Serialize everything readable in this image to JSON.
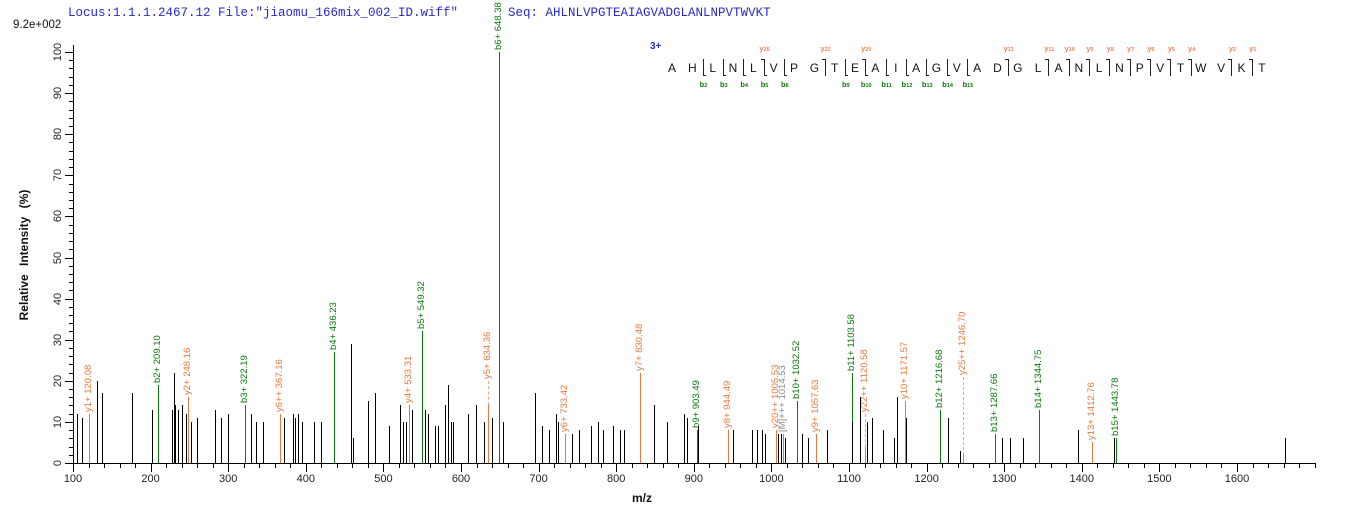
{
  "header": {
    "locus_file": "Locus:1.1.1.2467.12 File:\"jiaomu_166mix_002_ID.wiff\"",
    "seq_label": "Seq:",
    "seq_value": "AHLNLVPGTEAIAGVADGLANLNPVTWVKT"
  },
  "sequence_annotation": {
    "precursor_charge": "3+",
    "residues": "AHLNLVPGTEAIAGVADGLANLNPVTWVKT",
    "cleavages": [
      {
        "after": 2,
        "b": "b2"
      },
      {
        "after": 3,
        "b": "b3"
      },
      {
        "after": 4,
        "b": "b4"
      },
      {
        "after": 5,
        "b": "b5",
        "y": "y25"
      },
      {
        "after": 6,
        "b": "b6"
      },
      {
        "after": 8,
        "y": "y22"
      },
      {
        "after": 9,
        "b": "b9"
      },
      {
        "after": 10,
        "b": "b10",
        "y": "y20"
      },
      {
        "after": 11,
        "b": "b11"
      },
      {
        "after": 12,
        "b": "b12"
      },
      {
        "after": 13,
        "b": "b13"
      },
      {
        "after": 14,
        "b": "b14"
      },
      {
        "after": 15,
        "b": "b15"
      },
      {
        "after": 17,
        "y": "y13"
      },
      {
        "after": 19,
        "y": "y11"
      },
      {
        "after": 20,
        "y": "y10"
      },
      {
        "after": 21,
        "y": "y9"
      },
      {
        "after": 22,
        "y": "y8"
      },
      {
        "after": 23,
        "y": "y7"
      },
      {
        "after": 24,
        "y": "y6"
      },
      {
        "after": 25,
        "y": "y5"
      },
      {
        "after": 26,
        "y": "y4"
      },
      {
        "after": 28,
        "y": "y2"
      },
      {
        "after": 29,
        "y": "y1"
      }
    ]
  },
  "chart_data": {
    "type": "bar",
    "subtype": "tandem-ms-stick-spectrum",
    "title": "",
    "xlabel": "m/z",
    "ylabel": "Relative Intensity (%)",
    "max_intensity_label": "9.2e+002",
    "x_range": [
      100,
      1700
    ],
    "y_range": [
      0,
      100
    ],
    "x_major_tick_step": 100,
    "x_minor_tick_step": 20,
    "x_last_labeled_tick": 1600,
    "y_major_tick_step": 10,
    "y_minor_tick_step": 2,
    "grid": "off",
    "legend": "none",
    "colors": {
      "b_ions": "#0a7a0a",
      "y_ions": "#e87a3c",
      "precursor": "#8c8c8c",
      "unassigned": "#000000"
    },
    "series": [
      {
        "name": "b-ions",
        "color": "#0a7a0a",
        "peaks": [
          {
            "mz": 209.1,
            "label": "b2+ 209.10",
            "pct": 19
          },
          {
            "mz": 322.19,
            "label": "b3+ 322.19",
            "pct": 14
          },
          {
            "mz": 436.23,
            "label": "b4+ 436.23",
            "pct": 27
          },
          {
            "mz": 549.32,
            "label": "b5+ 549.32",
            "pct": 32
          },
          {
            "mz": 648.38,
            "label": "b6+ 648.38",
            "pct": 100
          },
          {
            "mz": 903.49,
            "label": "b9+ 903.49",
            "pct": 8
          },
          {
            "mz": 1032.52,
            "label": "b10+ 1032.52",
            "pct": 15
          },
          {
            "mz": 1103.58,
            "label": "b11+ 1103.58",
            "pct": 22
          },
          {
            "mz": 1216.68,
            "label": "b12+ 1216.68",
            "pct": 13
          },
          {
            "mz": 1287.66,
            "label": "b13+ 1287.66",
            "pct": 7
          },
          {
            "mz": 1344.75,
            "label": "b14+ 1344.75",
            "pct": 13
          },
          {
            "mz": 1443.78,
            "label": "b15+ 1443.78",
            "pct": 6
          }
        ]
      },
      {
        "name": "y-ions",
        "color": "#e87a3c",
        "peaks": [
          {
            "mz": 120.08,
            "label": "y1+ 120.08",
            "pct": 12
          },
          {
            "mz": 248.16,
            "label": "y2+ 248.16",
            "pct": 16
          },
          {
            "mz": 367.16,
            "label": "y6++ 367.16",
            "pct": 12
          },
          {
            "mz": 533.31,
            "label": "y4+ 533.31",
            "pct": 14
          },
          {
            "mz": 634.36,
            "label": "y5+ 634.36",
            "pct": 14,
            "dash_to": 20
          },
          {
            "mz": 733.42,
            "label": "y6+ 733.42",
            "pct": 7
          },
          {
            "mz": 830.48,
            "label": "y7+ 830.48",
            "pct": 22
          },
          {
            "mz": 944.49,
            "label": "y8+ 944.49",
            "pct": 8
          },
          {
            "mz": 1005.53,
            "label": "y20++ 1005.53",
            "pct": 8
          },
          {
            "mz": 1057.63,
            "label": "y9+ 1057.63",
            "pct": 7
          },
          {
            "mz": 1120.58,
            "label": "y22++ 1120.58",
            "pct": 4,
            "dash_to": 12
          },
          {
            "mz": 1171.57,
            "label": "y10+ 1171.57",
            "pct": 15
          },
          {
            "mz": 1246.7,
            "label": "y25++ 1246.70",
            "pct": 2,
            "dash_to": 21
          },
          {
            "mz": 1412.76,
            "label": "y13+ 1412.76",
            "pct": 5
          }
        ]
      },
      {
        "name": "precursor",
        "color": "#8c8c8c",
        "peaks": [
          {
            "mz": 1014.53,
            "label": "[M]+++ 1014.53",
            "pct": 7
          }
        ]
      },
      {
        "name": "unassigned",
        "color": "#000000",
        "peaks": [
          [
            105,
            12
          ],
          [
            112,
            11
          ],
          [
            131,
            20
          ],
          [
            138,
            17
          ],
          [
            176,
            17
          ],
          [
            202,
            13
          ],
          [
            227,
            13
          ],
          [
            230,
            22
          ],
          [
            232,
            14
          ],
          [
            235,
            13
          ],
          [
            240,
            14
          ],
          [
            245,
            12
          ],
          [
            252,
            10
          ],
          [
            260,
            11
          ],
          [
            283,
            13
          ],
          [
            291,
            11
          ],
          [
            300,
            12
          ],
          [
            330,
            12
          ],
          [
            336,
            10
          ],
          [
            345,
            10
          ],
          [
            372,
            11
          ],
          [
            383,
            12
          ],
          [
            386,
            11
          ],
          [
            390,
            12
          ],
          [
            395,
            10
          ],
          [
            410,
            10
          ],
          [
            420,
            10
          ],
          [
            458,
            29
          ],
          [
            461,
            6
          ],
          [
            480,
            15
          ],
          [
            489,
            17
          ],
          [
            507,
            9
          ],
          [
            521,
            14
          ],
          [
            525,
            10
          ],
          [
            529,
            10
          ],
          [
            537,
            13
          ],
          [
            554,
            13
          ],
          [
            557,
            12
          ],
          [
            566,
            9
          ],
          [
            570,
            9
          ],
          [
            579,
            14
          ],
          [
            583,
            19
          ],
          [
            587,
            10
          ],
          [
            590,
            10
          ],
          [
            609,
            12
          ],
          [
            619,
            14
          ],
          [
            630,
            10
          ],
          [
            640,
            11
          ],
          [
            654,
            10
          ],
          [
            695,
            17
          ],
          [
            704,
            9
          ],
          [
            713,
            8
          ],
          [
            722,
            12
          ],
          [
            725,
            10
          ],
          [
            743,
            7
          ],
          [
            752,
            8
          ],
          [
            767,
            9
          ],
          [
            776,
            10
          ],
          [
            783,
            8
          ],
          [
            796,
            9
          ],
          [
            805,
            8
          ],
          [
            810,
            8
          ],
          [
            849,
            14
          ],
          [
            866,
            10
          ],
          [
            888,
            12
          ],
          [
            891,
            11
          ],
          [
            906,
            9
          ],
          [
            950,
            8
          ],
          [
            975,
            8
          ],
          [
            982,
            8
          ],
          [
            988,
            8
          ],
          [
            992,
            7
          ],
          [
            1008,
            7
          ],
          [
            1012,
            7
          ],
          [
            1018,
            6
          ],
          [
            1040,
            7
          ],
          [
            1047,
            6
          ],
          [
            1072,
            8
          ],
          [
            1104,
            10
          ],
          [
            1114,
            16
          ],
          [
            1123,
            10
          ],
          [
            1130,
            11
          ],
          [
            1144,
            8
          ],
          [
            1158,
            6
          ],
          [
            1162,
            16
          ],
          [
            1174,
            11
          ],
          [
            1228,
            11
          ],
          [
            1243,
            3
          ],
          [
            1297,
            6
          ],
          [
            1307,
            6
          ],
          [
            1324,
            6
          ],
          [
            1395,
            8
          ],
          [
            1441,
            6
          ],
          [
            1662,
            6
          ]
        ]
      }
    ]
  }
}
